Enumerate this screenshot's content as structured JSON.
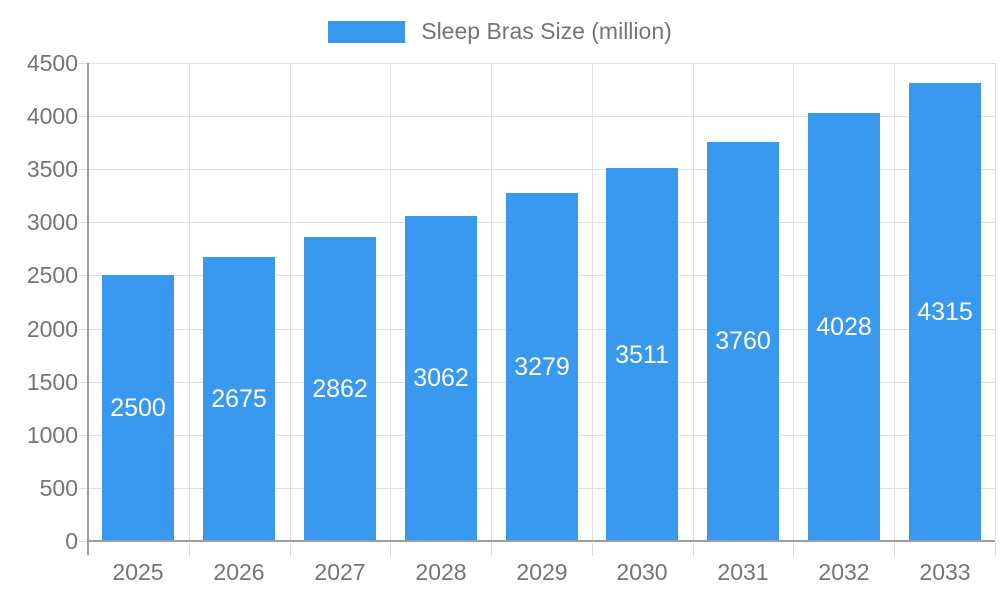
{
  "legend": {
    "label": "Sleep Bras Size (million)"
  },
  "colors": {
    "bar": "#3899ee",
    "bar_label": "#ffffff",
    "axis_line": "#9e9e9e",
    "gridline": "#e0e0e0",
    "tick": "#dcdcdc",
    "tick_label": "#757575",
    "legend_text": "#757575",
    "background": "#ffffff"
  },
  "chart_data": {
    "type": "bar",
    "title": "Sleep Bras Size (million)",
    "series": [
      {
        "name": "Sleep Bras Size (million)",
        "values": [
          2500,
          2675,
          2862,
          3062,
          3279,
          3511,
          3760,
          4028,
          4315
        ]
      }
    ],
    "categories": [
      "2025",
      "2026",
      "2027",
      "2028",
      "2029",
      "2030",
      "2031",
      "2032",
      "2033"
    ],
    "value_labels": [
      "2500",
      "2675",
      "2862",
      "3062",
      "3279",
      "3511",
      "3760",
      "4028",
      "4315"
    ],
    "xlabel": "",
    "ylabel": "",
    "ylim": [
      0,
      4500
    ],
    "ytick_step": 500,
    "yticks": [
      "0",
      "500",
      "1000",
      "1500",
      "2000",
      "2500",
      "3000",
      "3500",
      "4000",
      "4500"
    ],
    "grid": "on",
    "legend_position": "top-center",
    "value_label_position": "inside-center"
  }
}
